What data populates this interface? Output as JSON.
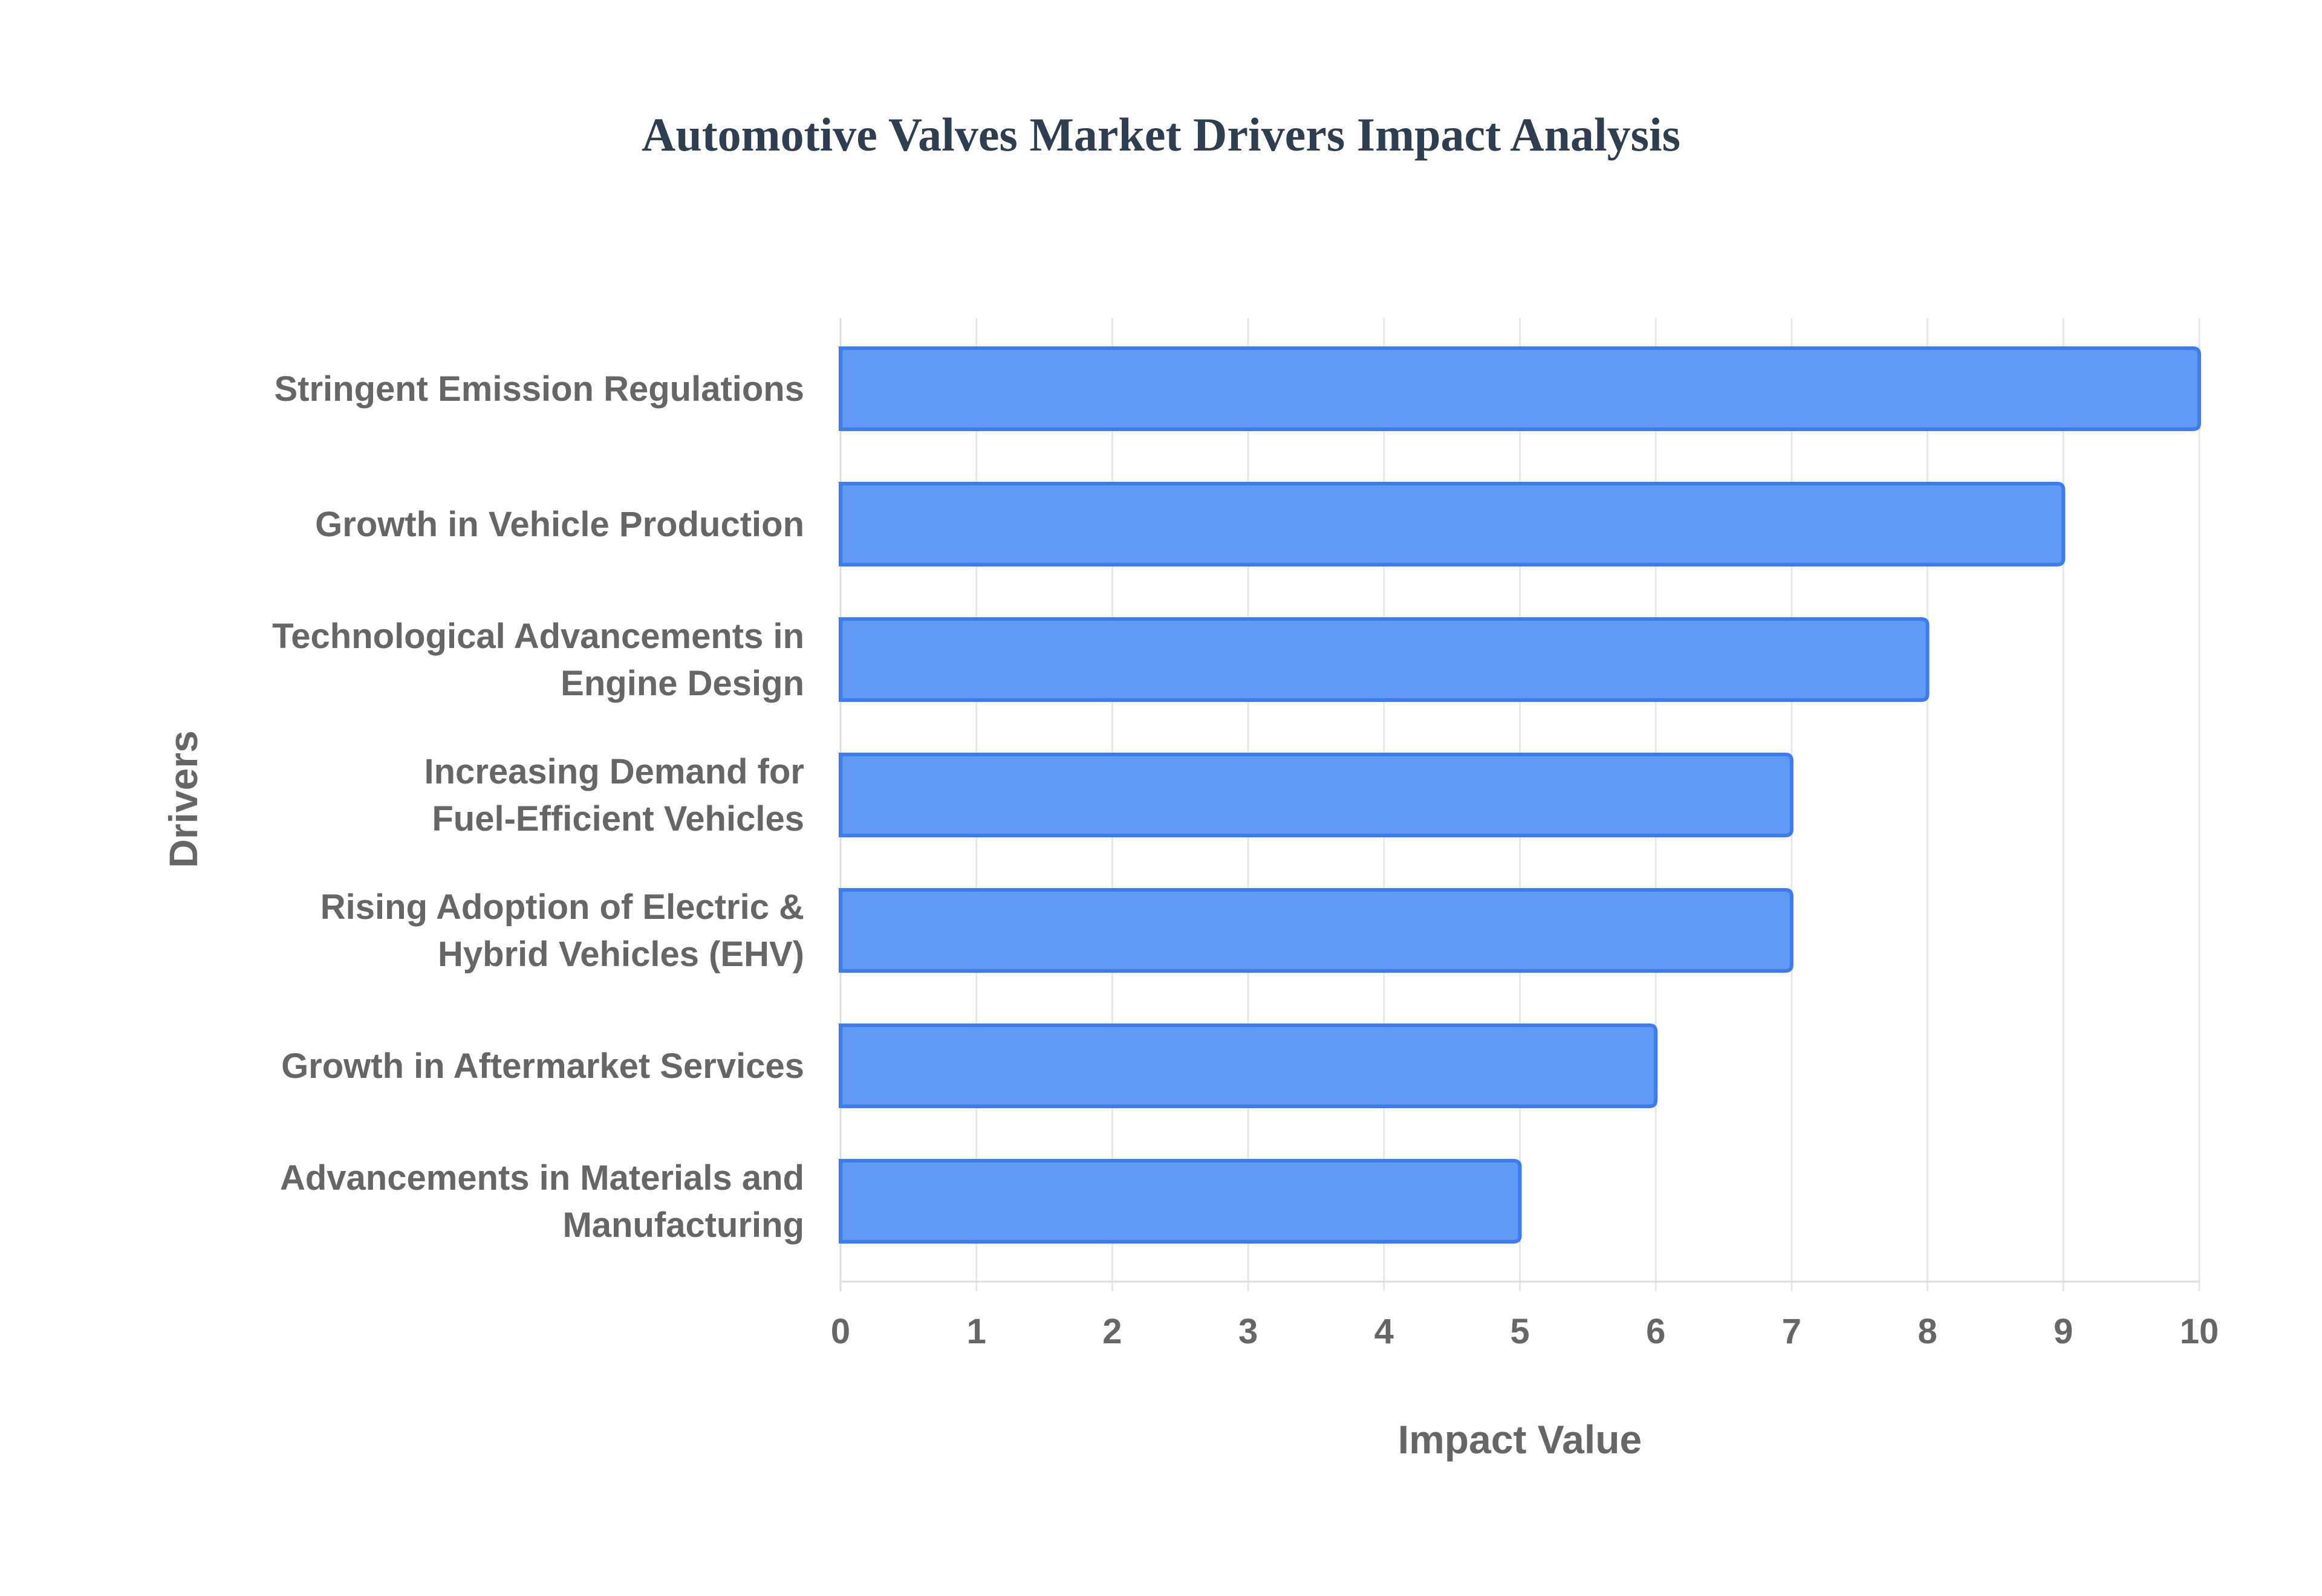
{
  "chart_data": {
    "type": "bar",
    "orientation": "horizontal",
    "title": "Automotive Valves Market Drivers Impact Analysis",
    "xlabel": "Impact Value",
    "ylabel": "Drivers",
    "categories": [
      [
        "Stringent Emission Regulations"
      ],
      [
        "Growth in Vehicle Production"
      ],
      [
        "Technological Advancements in",
        "Engine Design"
      ],
      [
        "Increasing Demand for",
        "Fuel-Efficient Vehicles"
      ],
      [
        "Rising Adoption of Electric &",
        "Hybrid Vehicles (EHV)"
      ],
      [
        "Growth in Aftermarket Services"
      ],
      [
        "Advancements in Materials and",
        "Manufacturing"
      ]
    ],
    "values": [
      10,
      9,
      8,
      7,
      7,
      6,
      5
    ],
    "xlim": [
      0,
      10
    ],
    "xticks": [
      "0",
      "1",
      "2",
      "3",
      "4",
      "5",
      "6",
      "7",
      "8",
      "9",
      "10"
    ],
    "grid": true,
    "colors": {
      "bar_fill": "#6199f5",
      "bar_border": "#3b7cf0",
      "title": "#2c3e50",
      "text": "#666666",
      "grid": "#e6e6e6"
    }
  }
}
